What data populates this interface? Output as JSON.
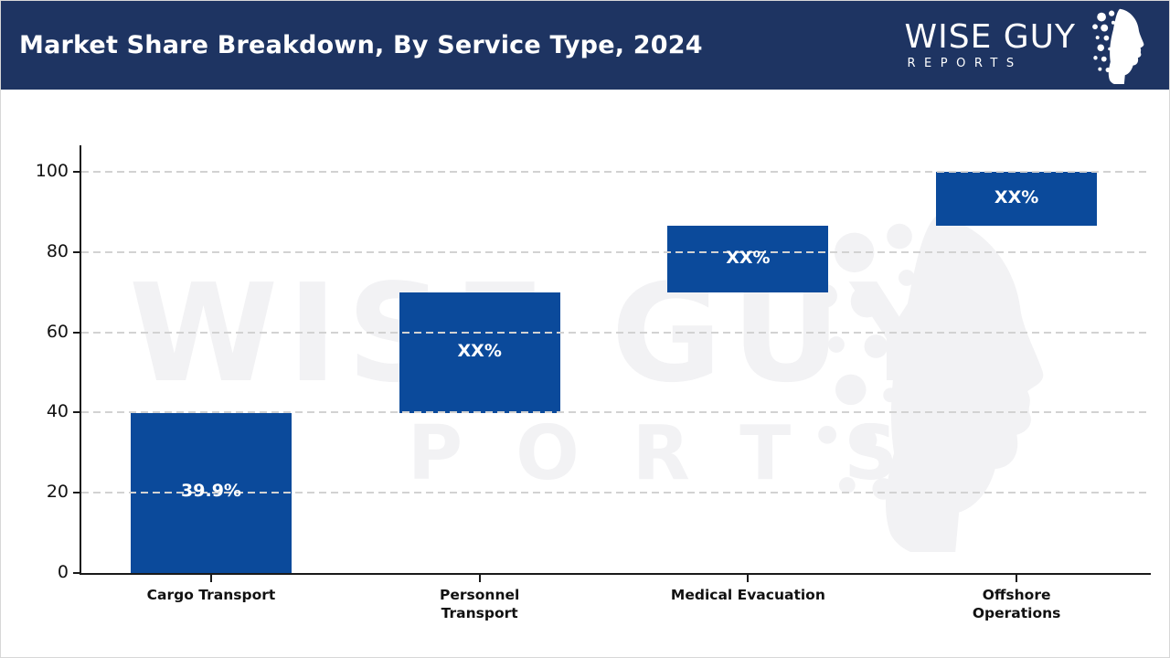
{
  "header": {
    "title": "Market Share Breakdown, By Service Type, 2024",
    "logo": {
      "line1": "WISE GUY",
      "line2": "REPORTS"
    }
  },
  "watermark": {
    "line1": "WISE GUY",
    "line2": "PORTS"
  },
  "colors": {
    "header_bg": "#1e3462",
    "bar": "#0b4a9b",
    "watermark": "#f2f2f4",
    "grid": "#d2d2d2",
    "axis": "#1a1a1a",
    "bar_label": "#ffffff"
  },
  "chart_data": {
    "type": "bar",
    "subtype": "waterfall",
    "title": "Market Share Breakdown, By Service Type, 2024",
    "categories": [
      "Cargo Transport",
      "Personnel\nTransport",
      "Medical Evacuation",
      "Offshore\nOperations"
    ],
    "series": [
      {
        "name": "Market Share",
        "segments": [
          {
            "category": "Cargo Transport",
            "start": 0,
            "end": 39.9,
            "value": 39.9,
            "label": "39.9%"
          },
          {
            "category": "Personnel Transport",
            "start": 39.9,
            "end": 69.9,
            "value": 30.0,
            "label": "XX%"
          },
          {
            "category": "Medical Evacuation",
            "start": 69.9,
            "end": 86.6,
            "value": 16.7,
            "label": "XX%"
          },
          {
            "category": "Offshore Operations",
            "start": 86.6,
            "end": 100,
            "value": 13.4,
            "label": "XX%"
          }
        ]
      }
    ],
    "xlabel": "",
    "ylabel": "",
    "yticks": [
      0,
      20,
      40,
      60,
      80,
      100
    ],
    "ylim": [
      0,
      107
    ],
    "grid": "horizontal-dashed",
    "legend": "none"
  }
}
